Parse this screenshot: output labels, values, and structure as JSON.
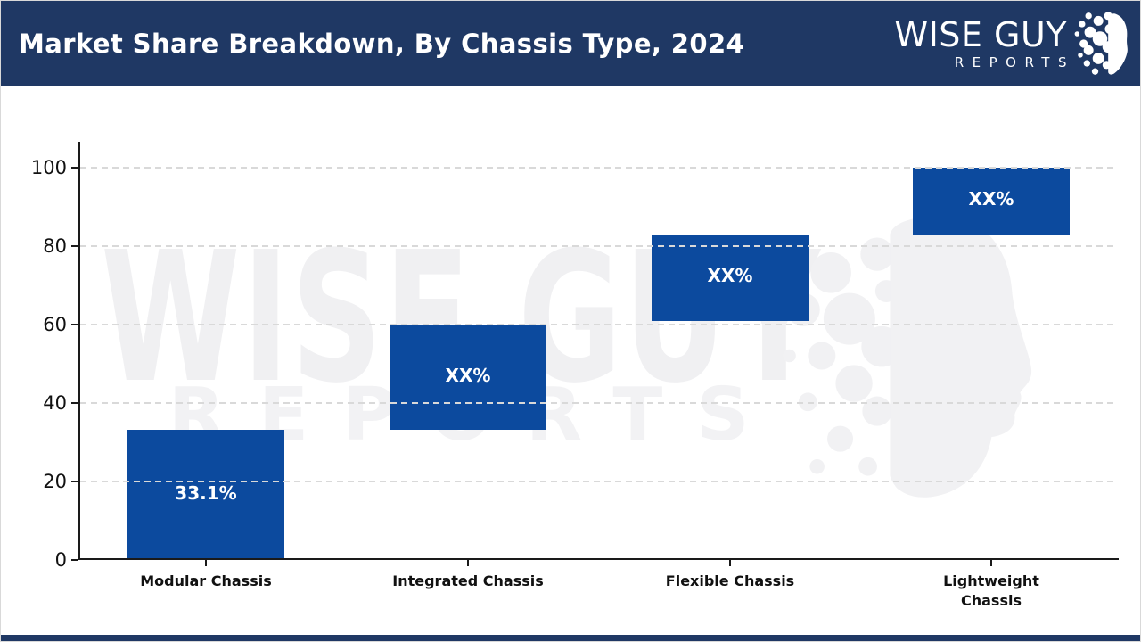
{
  "header": {
    "title": "Market Share Breakdown, By Chassis Type, 2024",
    "logo": {
      "name": "WISE GUY",
      "tagline": "REPORTS",
      "icon": "dotted-head-profile-icon"
    }
  },
  "watermark": {
    "name": "WISE GUY",
    "tagline": "REPORTS",
    "icon": "dotted-head-profile-watermark"
  },
  "colors": {
    "header_bg": "#1f3864",
    "bar": "#0c4a9e",
    "grid": "#d9d9d9",
    "axis": "#1a1a1a",
    "bar_label": "#ffffff",
    "watermark": "#f0f0f2"
  },
  "chart_data": {
    "type": "bar",
    "variant": "waterfall",
    "title": "Market Share Breakdown, By Chassis Type, 2024",
    "categories": [
      "Modular Chassis",
      "Integrated Chassis",
      "Flexible Chassis",
      "Lightweight\nChassis"
    ],
    "segments": [
      {
        "category": "Modular Chassis",
        "start": 0,
        "end": 33.1,
        "label": "33.1%"
      },
      {
        "category": "Integrated Chassis",
        "start": 33.1,
        "end": 60,
        "label": "XX%"
      },
      {
        "category": "Flexible Chassis",
        "start": 61,
        "end": 83,
        "label": "XX%"
      },
      {
        "category": "Lightweight Chassis",
        "start": 83,
        "end": 100,
        "label": "XX%"
      }
    ],
    "xlabel": "",
    "ylabel": "",
    "yticks": [
      0,
      20,
      40,
      60,
      80,
      100
    ],
    "ylim": [
      0,
      106
    ],
    "grid": "horizontal-dashed",
    "grid_above_bars": true,
    "legend": false,
    "bar_color": "#0c4a9e"
  }
}
